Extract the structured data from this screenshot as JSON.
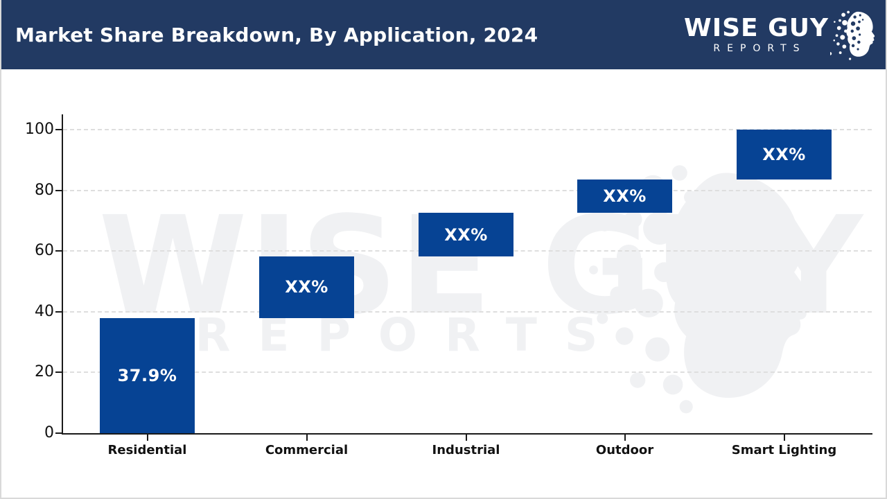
{
  "header": {
    "title": "Market Share Breakdown, By Application, 2024",
    "logo": {
      "line1": "WISE GUY",
      "line2": "REPORTS"
    }
  },
  "watermark": {
    "line1": "WISE GUY",
    "line2": "REPORTS"
  },
  "chart_data": {
    "type": "bar",
    "subtype": "waterfall",
    "title": "Market Share Breakdown, By Application, 2024",
    "categories": [
      "Residential",
      "Commercial",
      "Industrial",
      "Outdoor",
      "Smart Lighting"
    ],
    "unit": "percent",
    "segments": [
      {
        "category": "Residential",
        "start": 0,
        "end": 37.9,
        "value": 37.9,
        "label": "37.9%"
      },
      {
        "category": "Commercial",
        "start": 37.9,
        "end": 58.3,
        "value": 20.4,
        "label": "XX%"
      },
      {
        "category": "Industrial",
        "start": 58.3,
        "end": 72.5,
        "value": 14.2,
        "label": "XX%"
      },
      {
        "category": "Outdoor",
        "start": 72.5,
        "end": 83.6,
        "value": 11.1,
        "label": "XX%"
      },
      {
        "category": "Smart Lighting",
        "start": 83.6,
        "end": 100,
        "value": 16.4,
        "label": "XX%"
      }
    ],
    "yticks": [
      0,
      20,
      40,
      60,
      80,
      100
    ],
    "ylim": [
      0,
      105
    ],
    "xlabel": "",
    "ylabel": "",
    "grid": "horizontal-dashed",
    "legend": "none",
    "bar_color": "#064394",
    "bar_label_color": "#ffffff"
  },
  "colors": {
    "header_bg": "#223a63",
    "bar": "#064394",
    "watermark": "#f0f1f3",
    "axis": "#1a1a1a",
    "gridline": "#dedede"
  }
}
